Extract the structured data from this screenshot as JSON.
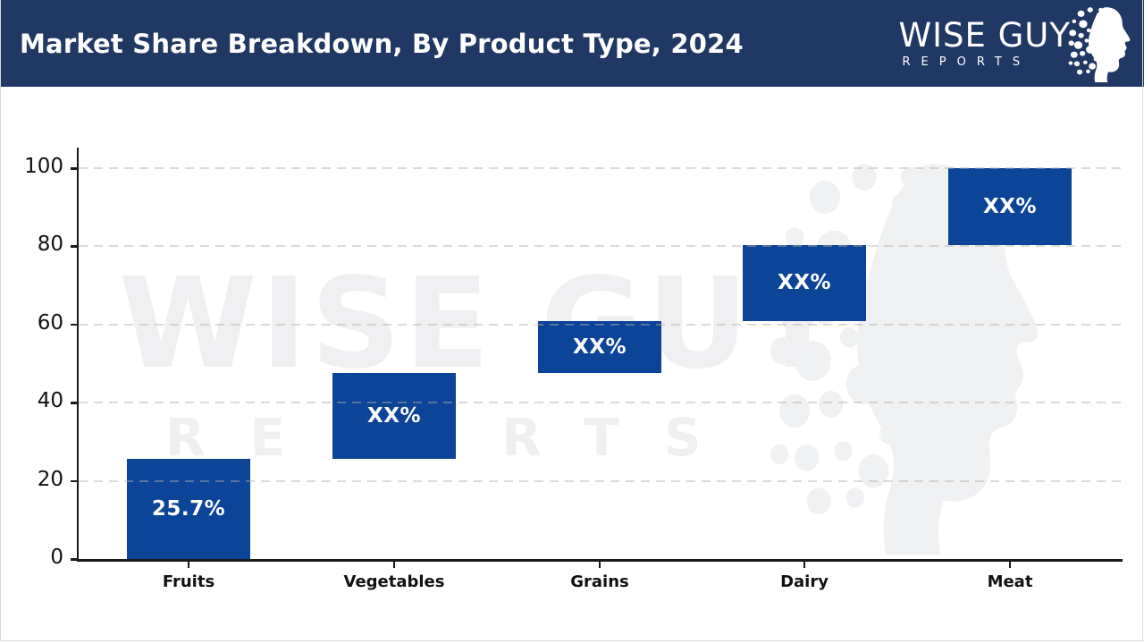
{
  "header": {
    "title": "Market Share Breakdown, By Product Type, 2024",
    "logo": {
      "line1": "WISE GUY",
      "line2": "REPORTS"
    }
  },
  "watermark": {
    "line1": "WISE GUY",
    "line2": "REPORTS"
  },
  "chart_data": {
    "type": "bar",
    "subtype": "waterfall",
    "title": "Market Share Breakdown, By Product Type, 2024",
    "categories": [
      "Fruits",
      "Vegetables",
      "Grains",
      "Dairy",
      "Meat"
    ],
    "segments": [
      {
        "category": "Fruits",
        "start": 0,
        "end": 25.7,
        "label": "25.7%"
      },
      {
        "category": "Vegetables",
        "start": 25.7,
        "end": 47.7,
        "label": "XX%"
      },
      {
        "category": "Grains",
        "start": 47.7,
        "end": 60.9,
        "label": "XX%"
      },
      {
        "category": "Dairy",
        "start": 60.9,
        "end": 80.4,
        "label": "XX%"
      },
      {
        "category": "Meat",
        "start": 80.4,
        "end": 100,
        "label": "XX%"
      }
    ],
    "xlabel": "",
    "ylabel": "",
    "yticks": [
      0,
      20,
      40,
      60,
      80,
      100
    ],
    "ylim": [
      0,
      105
    ],
    "grid": "horizontal-dashed",
    "legend": "none",
    "bar_color": "#0c4497",
    "bar_label_color": "#ffffff"
  },
  "colors": {
    "header_bg": "#203864",
    "bar": "#0c4497",
    "axis": "#1a1a1a",
    "gridline": "#e0e0e0",
    "watermark": "#f0f0f2",
    "page_border": "#d9d9d9",
    "title_text": "#ffffff"
  }
}
